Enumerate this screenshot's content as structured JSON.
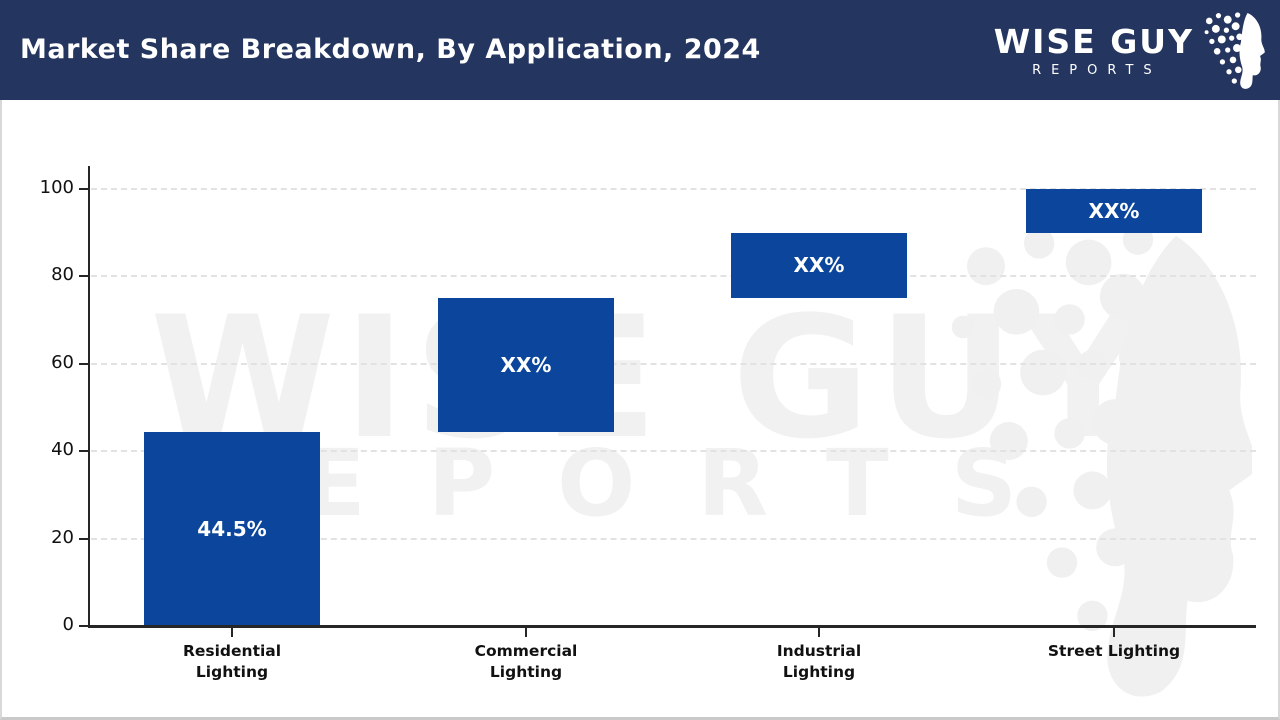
{
  "header": {
    "title": "Market Share Breakdown, By Application, 2024",
    "bg_color": "#24355f",
    "logo": {
      "line1": "WISE GUY",
      "line2": "REPORTS"
    }
  },
  "watermark": {
    "line1": "WISE GUY",
    "line2": "REPORTS"
  },
  "chart_data": {
    "type": "bar",
    "subtype": "waterfall",
    "title": "Market Share Breakdown, By Application, 2024",
    "xlabel": "",
    "ylabel": "",
    "ylim": [
      0,
      105
    ],
    "yticks": [
      0,
      20,
      40,
      60,
      80,
      100
    ],
    "grid": "horizontal-dashed",
    "legend": "none",
    "bar_color": "#0b459c",
    "bar_label_color": "#ffffff",
    "categories": [
      [
        "Residential",
        "Lighting"
      ],
      [
        "Commercial",
        "Lighting"
      ],
      [
        "Industrial",
        "Lighting"
      ],
      [
        "Street Lighting"
      ]
    ],
    "segments": [
      {
        "category": "Residential Lighting",
        "start": 0,
        "end": 44.5,
        "label": "44.5%"
      },
      {
        "category": "Commercial Lighting",
        "start": 44.5,
        "end": 75,
        "label": "XX%"
      },
      {
        "category": "Industrial Lighting",
        "start": 75,
        "end": 90,
        "label": "XX%"
      },
      {
        "category": "Street Lighting",
        "start": 90,
        "end": 100,
        "label": "XX%"
      }
    ]
  }
}
